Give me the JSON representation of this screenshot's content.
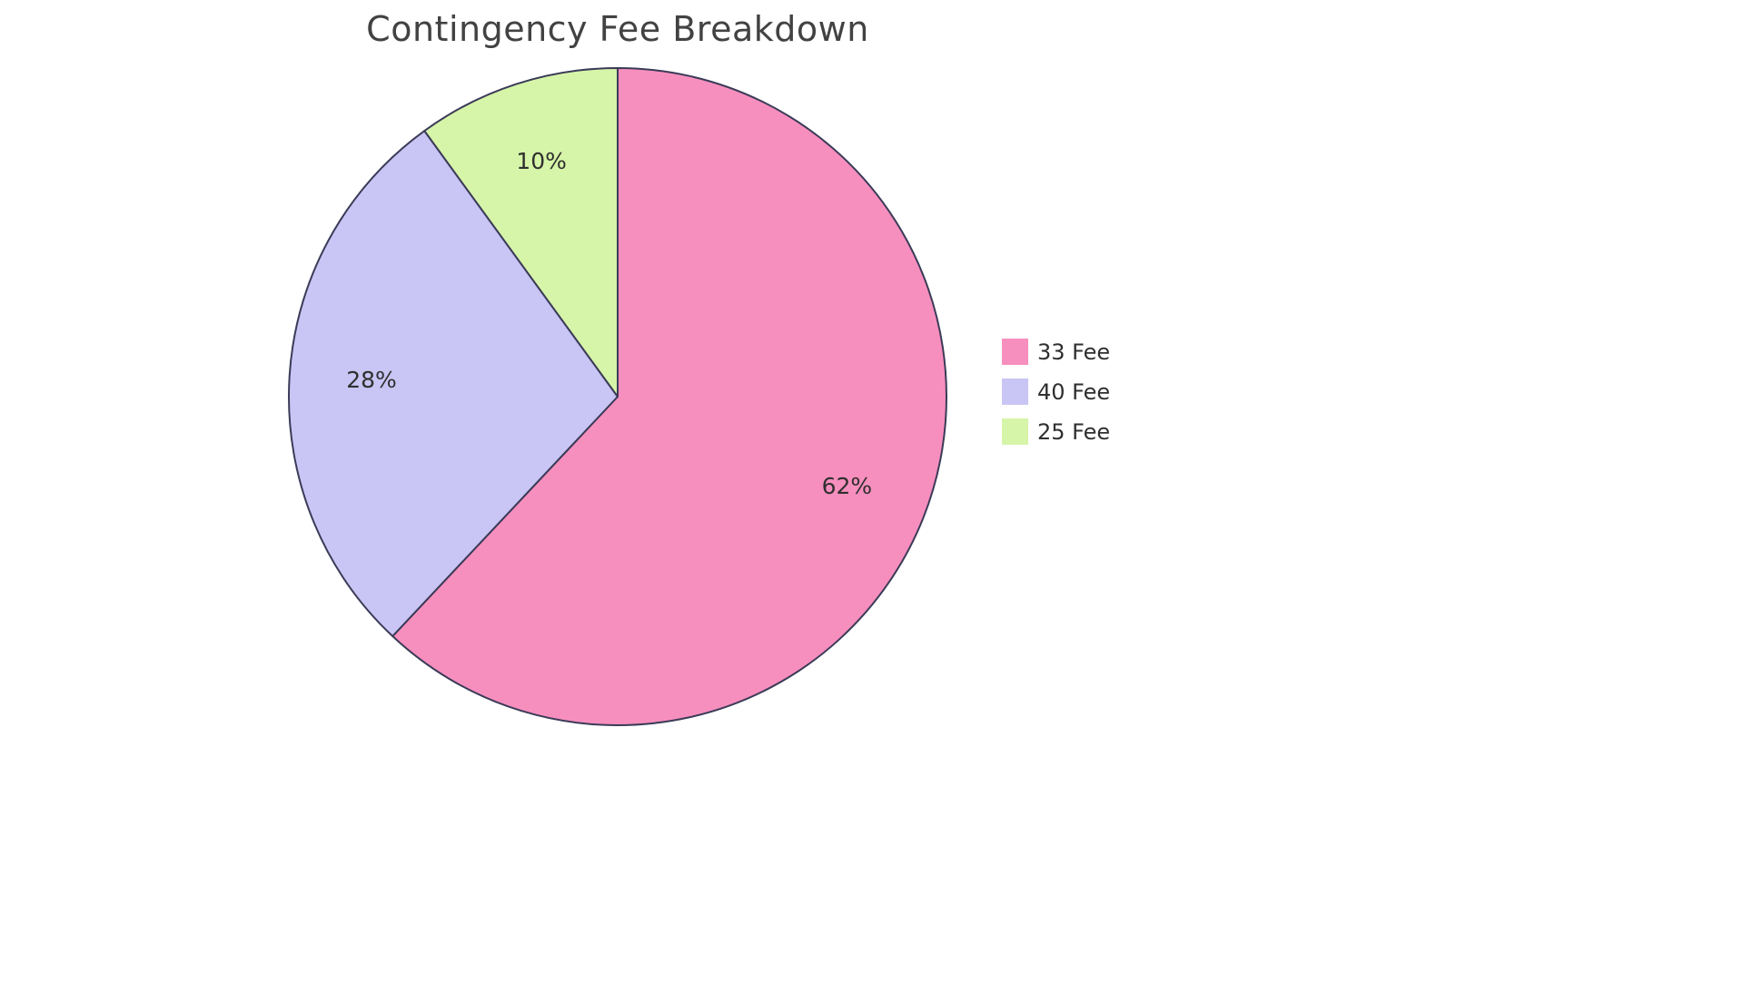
{
  "chart_data": {
    "type": "pie",
    "title": "Contingency Fee Breakdown",
    "slices": [
      {
        "label": "33 Fee",
        "value": 62,
        "text": "62%",
        "color": "#F78FBE"
      },
      {
        "label": "40 Fee",
        "value": 28,
        "text": "28%",
        "color": "#C9C5F4"
      },
      {
        "label": "25 Fee",
        "value": 10,
        "text": "10%",
        "color": "#D6F5A8"
      }
    ],
    "start_angle_deg": 0,
    "direction": "clockwise",
    "stroke_color": "#3B3B58",
    "stroke_width": 2,
    "label_color": "#2f2f2f",
    "legend_position": "right",
    "background": "#FFFFFF"
  }
}
